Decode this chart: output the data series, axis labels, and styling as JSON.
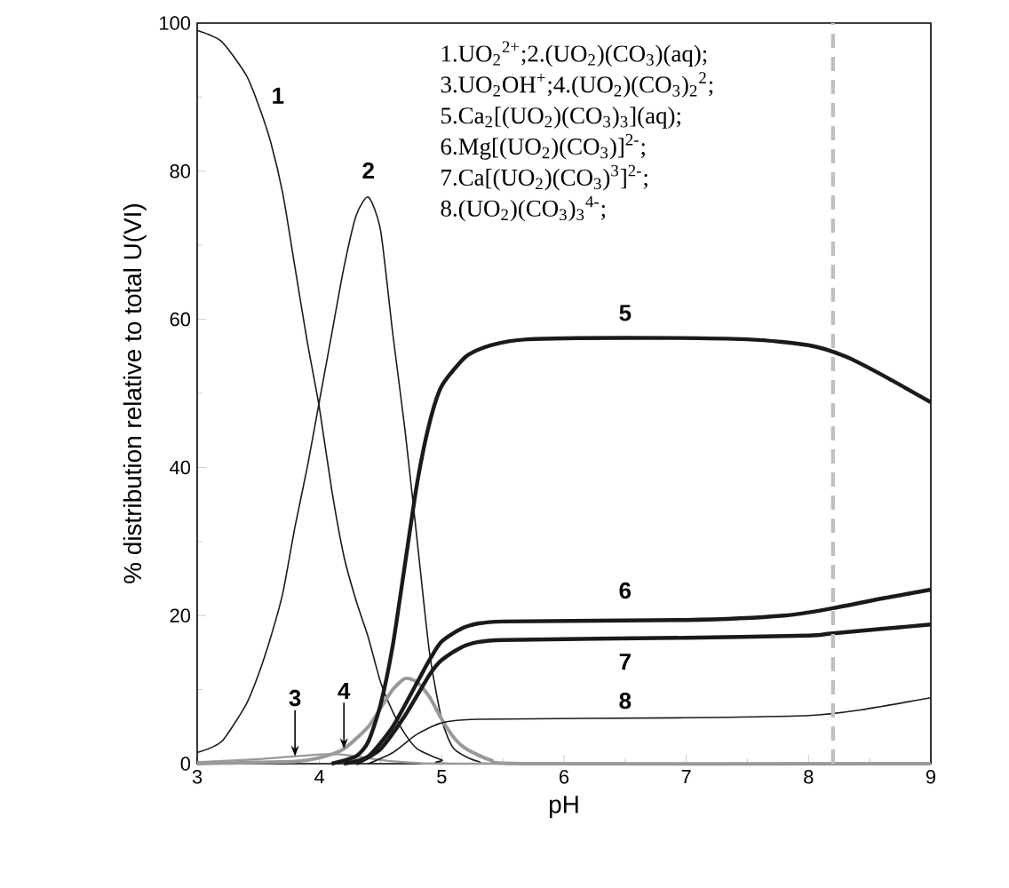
{
  "chart_data": {
    "type": "line",
    "xlabel": "pH",
    "ylabel": "% distribution relative to total U(VI)",
    "xlim": [
      3,
      9
    ],
    "ylim": [
      0,
      100
    ],
    "xticks": [
      3,
      4,
      5,
      6,
      7,
      8,
      9
    ],
    "yticks": [
      0,
      20,
      40,
      60,
      80,
      100
    ],
    "line_style": "solid",
    "series": [
      {
        "color": "#1a1a1a",
        "x": [
          3,
          3.2,
          3.4,
          3.5,
          3.6,
          3.7,
          3.8,
          3.9,
          4.0,
          4.1,
          4.2,
          4.3,
          4.4,
          4.5,
          4.6,
          4.7,
          4.8,
          5.0,
          5.2,
          9
        ],
        "values": [
          99,
          97.5,
          93,
          89,
          84,
          77,
          67,
          57,
          48,
          37,
          28,
          22,
          17,
          11,
          7,
          4,
          2,
          0.5,
          0,
          0
        ]
      },
      {
        "color": "#1a1a1a",
        "x": [
          3,
          3.2,
          3.4,
          3.5,
          3.6,
          3.7,
          3.8,
          3.9,
          4.0,
          4.1,
          4.2,
          4.3,
          4.4,
          4.5,
          4.6,
          4.7,
          4.8,
          4.9,
          5.0,
          5.1,
          5.3,
          5.6,
          9
        ],
        "values": [
          1.5,
          3,
          8,
          12,
          17,
          23,
          32,
          40,
          49,
          58,
          67,
          74,
          76.5,
          72,
          58,
          45,
          30,
          15,
          6,
          2,
          0.3,
          0,
          0
        ]
      },
      {
        "color": "#999999",
        "x": [
          3,
          3.5,
          3.8,
          4.1,
          4.3,
          4.5,
          4.8,
          5.2,
          9
        ],
        "values": [
          0.2,
          0.6,
          1.0,
          1.3,
          1.0,
          0.5,
          0.1,
          0,
          0
        ]
      },
      {
        "color": "#999999",
        "x": [
          3,
          3.8,
          4.0,
          4.2,
          4.4,
          4.5,
          4.6,
          4.7,
          4.8,
          4.9,
          5.0,
          5.1,
          5.2,
          5.4,
          5.7,
          9
        ],
        "values": [
          0,
          0.3,
          0.8,
          2,
          5,
          7.5,
          10,
          11.5,
          11,
          9,
          6,
          3.5,
          2,
          0.5,
          0,
          0
        ]
      },
      {
        "color": "#1a1a1a",
        "x": [
          4.1,
          4.3,
          4.4,
          4.5,
          4.6,
          4.7,
          4.8,
          4.9,
          5.0,
          5.2,
          5.4,
          5.7,
          6.5,
          7.5,
          8.0,
          8.3,
          8.6,
          9
        ],
        "values": [
          0,
          1,
          3,
          8,
          16,
          27,
          38,
          46,
          51,
          55,
          56.5,
          57.3,
          57.5,
          57.3,
          56.5,
          55,
          52.5,
          48.8
        ]
      },
      {
        "color": "#1a1a1a",
        "x": [
          4.2,
          4.4,
          4.6,
          4.8,
          4.9,
          5.0,
          5.2,
          5.5,
          7,
          7.8,
          8.2,
          8.6,
          9
        ],
        "values": [
          0,
          1,
          5,
          11,
          14,
          16.5,
          18.5,
          19.2,
          19.4,
          20,
          21,
          22.3,
          23.5
        ]
      },
      {
        "color": "#1a1a1a",
        "x": [
          4.3,
          4.5,
          4.7,
          4.9,
          5.0,
          5.2,
          5.5,
          7,
          8,
          8.2,
          9
        ],
        "values": [
          0,
          2,
          6.5,
          12,
          14,
          16,
          16.7,
          17,
          17.3,
          17.6,
          18.8
        ]
      },
      {
        "color": "#1a1a1a",
        "x": [
          4.4,
          4.6,
          4.8,
          5.0,
          5.3,
          7,
          8,
          8.4,
          9
        ],
        "values": [
          0,
          1.5,
          4,
          5.5,
          6,
          6.2,
          6.5,
          7.2,
          8.9
        ]
      }
    ],
    "ref_lines": [
      {
        "axis": "x",
        "value": 8.2,
        "color": "#c0c0c0",
        "line_style": "dashed"
      }
    ],
    "annotations": [
      "1.UO$_{2}$$^{2+}$;2.(UO$_{2}$)(CO$_{3}$)(aq);",
      "3.UO$_{2}$OH$^{+}$;4.(UO$_{2}$)(CO$_{3}$)$_{2}$$^{2}$;",
      "5.Ca$_{2}$[(UO$_{2}$)(CO$_{3}$)$_{3}$](aq);",
      "6.Mg[(UO$_{2}$)(CO$_{3}$)]$^{2-}$;",
      "7.Ca[(UO$_{2}$)(CO$_{3}$)$^{3}$]$^{2-}$;",
      "8.(UO$_{2}$)(CO$_{3}$)$_{3}$$^{4-}$;",
      {
        "text": "1",
        "x": 3.5,
        "y": 89
      },
      {
        "text": "2",
        "x": 4.4,
        "y": 76.5
      },
      {
        "text": "3",
        "x": 3.8,
        "y": 1.0
      },
      {
        "text": "4",
        "x": 4.2,
        "y": 2
      },
      {
        "text": "5",
        "x": 6.5,
        "y": 57.5
      },
      {
        "text": "6",
        "x": 6.5,
        "y": 19.3
      },
      {
        "text": "7",
        "x": 6.5,
        "y": 16.9
      },
      {
        "text": "8",
        "x": 6.5,
        "y": 6.1
      }
    ]
  }
}
